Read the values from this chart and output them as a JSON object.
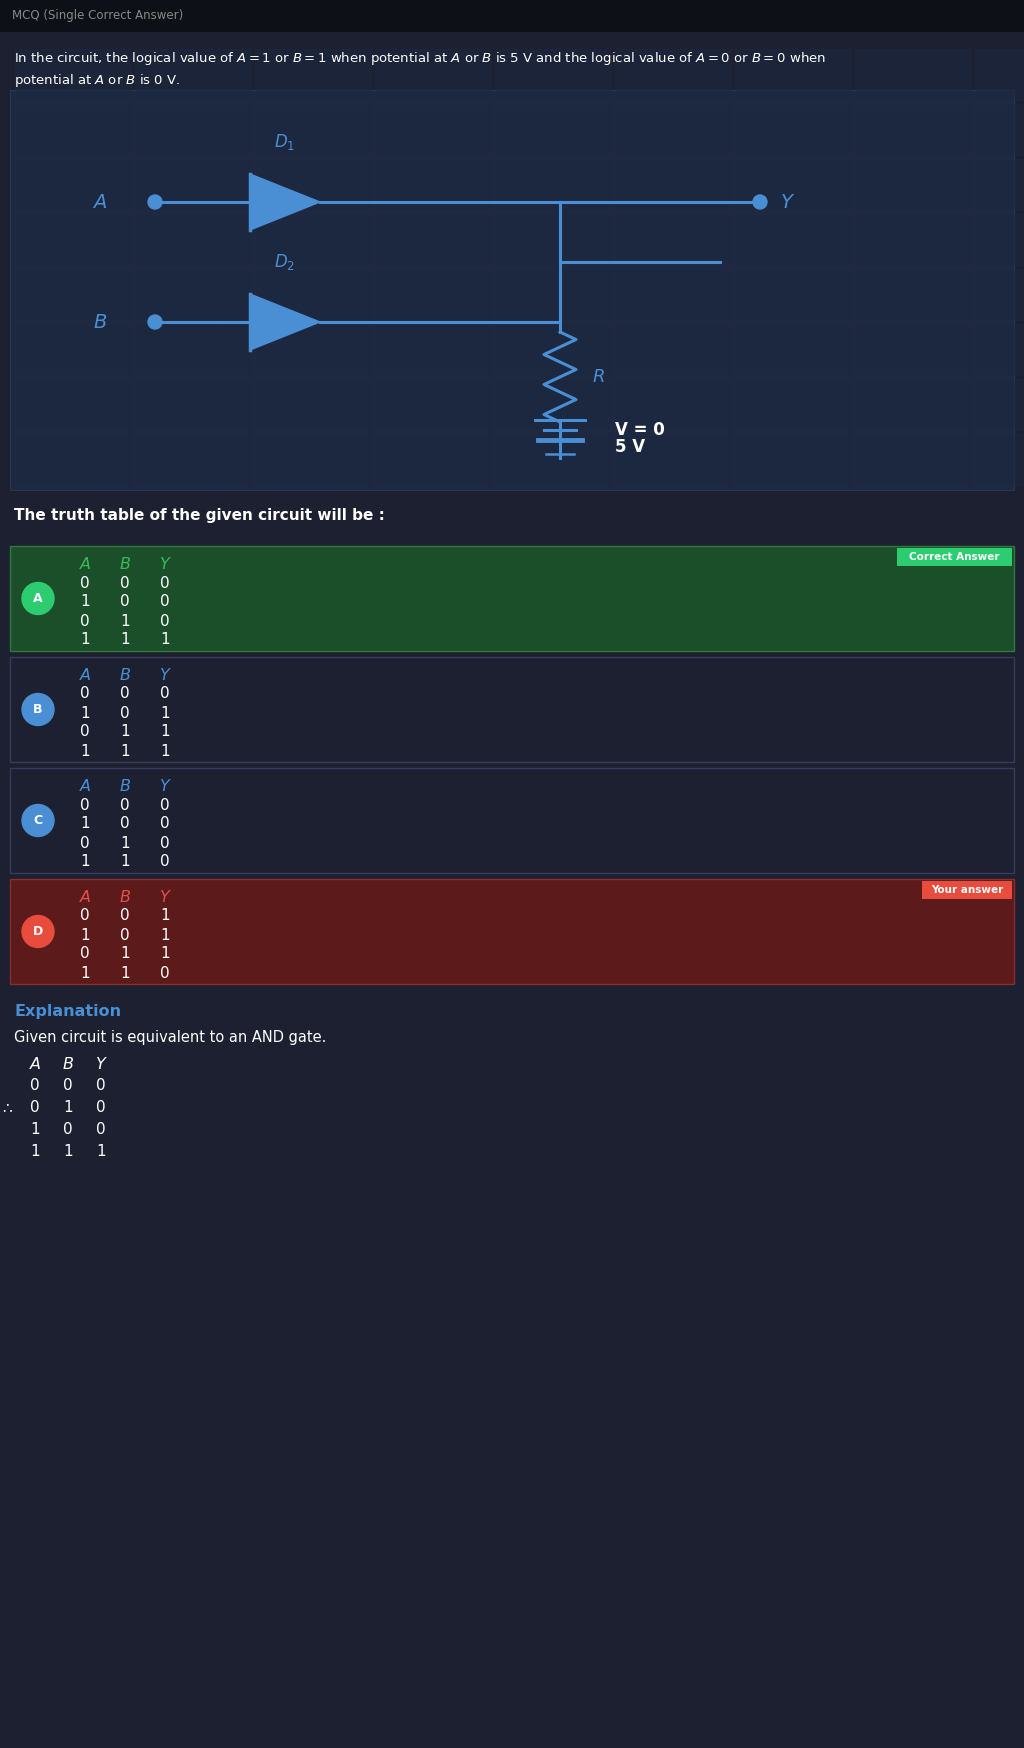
{
  "bg_color": "#1c2030",
  "header_bg": "#0d1017",
  "text_color": "#ffffff",
  "wire_color": "#4a8fd4",
  "circuit_bg": "#1e2840",
  "grid_color": "#252e42",
  "options": [
    {
      "label": "A",
      "bg_color": "#1a4f2a",
      "border_color": "#2d7a3a",
      "header_color": "#3db85a",
      "badge_color": "#2ecc71",
      "table": [
        [
          "A",
          "B",
          "Y"
        ],
        [
          "0",
          "0",
          "0"
        ],
        [
          "1",
          "0",
          "0"
        ],
        [
          "0",
          "1",
          "0"
        ],
        [
          "1",
          "1",
          "1"
        ]
      ],
      "tag": "Correct Answer",
      "tag_color": "#2ecc71"
    },
    {
      "label": "B",
      "bg_color": "#1c2030",
      "border_color": "#3a3a5c",
      "header_color": "#4a8fd4",
      "badge_color": "#4a8fd4",
      "table": [
        [
          "A",
          "B",
          "Y"
        ],
        [
          "0",
          "0",
          "0"
        ],
        [
          "1",
          "0",
          "1"
        ],
        [
          "0",
          "1",
          "1"
        ],
        [
          "1",
          "1",
          "1"
        ]
      ],
      "tag": "",
      "tag_color": ""
    },
    {
      "label": "C",
      "bg_color": "#1c2030",
      "border_color": "#3a3a5c",
      "header_color": "#4a8fd4",
      "badge_color": "#4a8fd4",
      "table": [
        [
          "A",
          "B",
          "Y"
        ],
        [
          "0",
          "0",
          "0"
        ],
        [
          "1",
          "0",
          "0"
        ],
        [
          "0",
          "1",
          "0"
        ],
        [
          "1",
          "1",
          "0"
        ]
      ],
      "tag": "",
      "tag_color": ""
    },
    {
      "label": "D",
      "bg_color": "#5c1a1a",
      "border_color": "#8a2d2d",
      "header_color": "#e05050",
      "badge_color": "#e74c3c",
      "table": [
        [
          "A",
          "B",
          "Y"
        ],
        [
          "0",
          "0",
          "1"
        ],
        [
          "1",
          "0",
          "1"
        ],
        [
          "0",
          "1",
          "1"
        ],
        [
          "1",
          "1",
          "0"
        ]
      ],
      "tag": "Your answer",
      "tag_color": "#e74c3c"
    }
  ],
  "explanation_color": "#4a8fd4",
  "therefore_symbol": "∴"
}
